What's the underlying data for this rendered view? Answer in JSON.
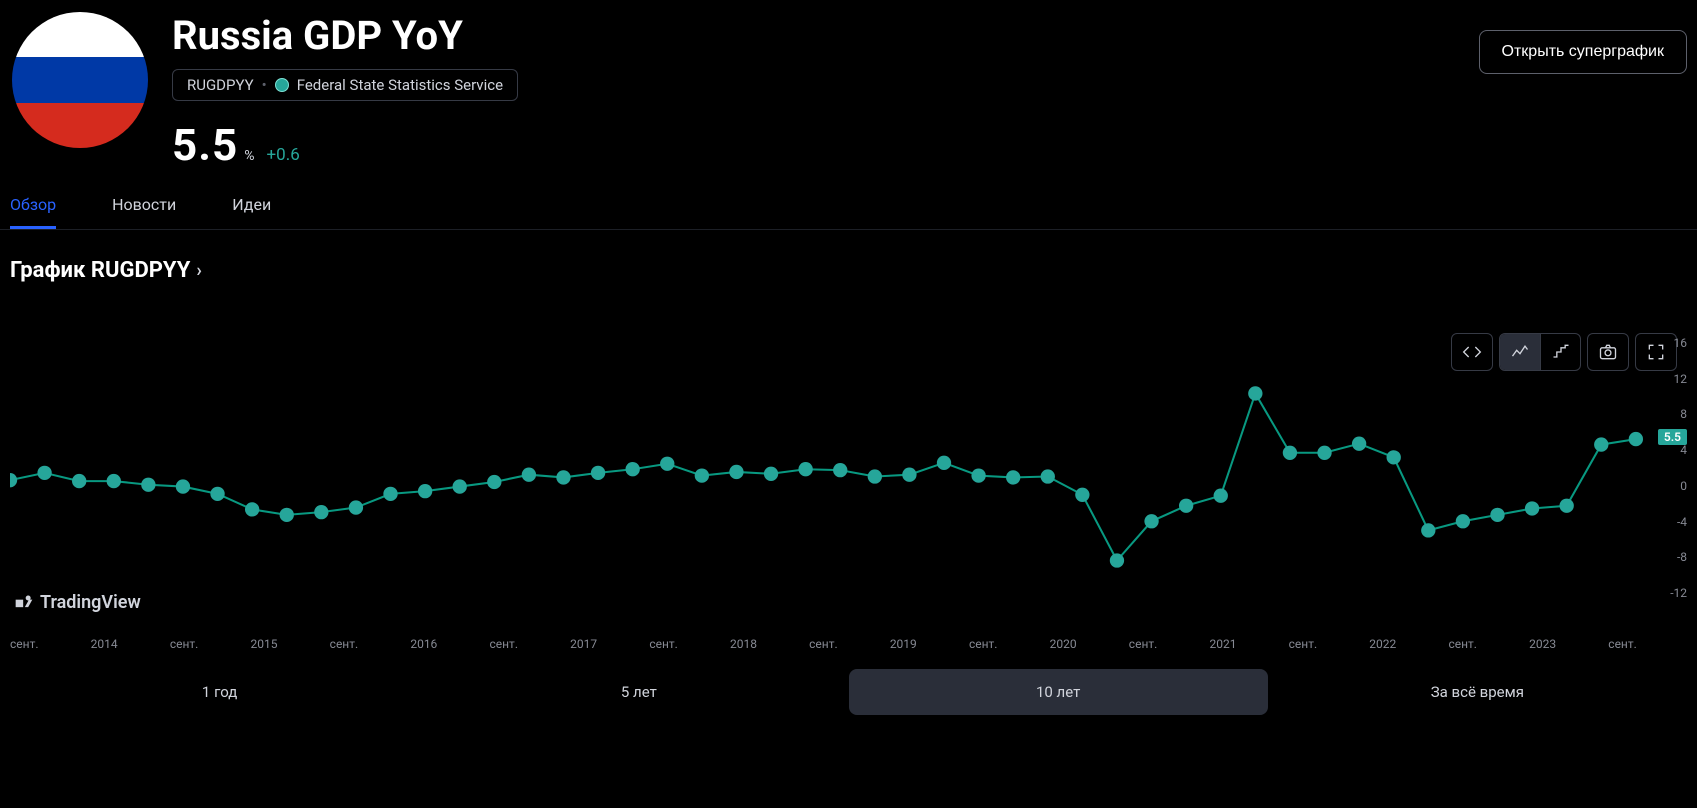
{
  "header": {
    "title": "Russia GDP YoY",
    "ticker": "RUGDPYY",
    "source": "Federal State Statistics Service",
    "value": "5.5",
    "unit": "%",
    "delta": "+0.6",
    "delta_color": "#26a69a",
    "open_btn": "Открыть суперграфик",
    "flag_colors": [
      "#ffffff",
      "#0039a6",
      "#d52b1e"
    ]
  },
  "tabs": [
    {
      "label": "Обзор",
      "active": true
    },
    {
      "label": "Новости",
      "active": false
    },
    {
      "label": "Идеи",
      "active": false
    }
  ],
  "section_title": "График RUGDPYY",
  "toolbar": {
    "embed_icon": "code",
    "line_icon": "line",
    "step_icon": "step",
    "camera_icon": "camera",
    "fullscreen_icon": "fullscreen",
    "active_index": 1
  },
  "chart": {
    "type": "line",
    "line_color": "#089981",
    "marker_color": "#26a69a",
    "marker_size": 7,
    "line_width": 2,
    "background": "#000000",
    "ylim": [
      -12,
      16
    ],
    "ytick_step": 4,
    "y_ticks": [
      16,
      12,
      8,
      4,
      0,
      -4,
      -8,
      -12
    ],
    "current_value": 5.5,
    "x_labels": [
      "сент.",
      "2014",
      "сент.",
      "2015",
      "сент.",
      "2016",
      "сент.",
      "2017",
      "сент.",
      "2018",
      "сент.",
      "2019",
      "сент.",
      "2020",
      "сент.",
      "2021",
      "сент.",
      "2022",
      "сент.",
      "2023",
      "сент."
    ],
    "values": [
      1.0,
      1.8,
      0.9,
      0.9,
      0.5,
      0.3,
      -0.5,
      -2.2,
      -2.8,
      -2.5,
      -2.0,
      -0.5,
      -0.2,
      0.3,
      0.8,
      1.6,
      1.3,
      1.8,
      2.2,
      2.8,
      1.5,
      1.9,
      1.7,
      2.2,
      2.1,
      1.4,
      1.6,
      2.9,
      1.5,
      1.3,
      1.4,
      -0.6,
      -7.8,
      -3.5,
      -1.8,
      -0.7,
      10.5,
      4.0,
      4.0,
      5.0,
      3.5,
      -4.5,
      -3.5,
      -2.8,
      -2.1,
      -1.8,
      4.9,
      5.5
    ]
  },
  "range": [
    {
      "label": "1 год",
      "active": false
    },
    {
      "label": "5 лет",
      "active": false
    },
    {
      "label": "10 лет",
      "active": true
    },
    {
      "label": "За всё время",
      "active": false
    }
  ],
  "watermark": "TradingView"
}
